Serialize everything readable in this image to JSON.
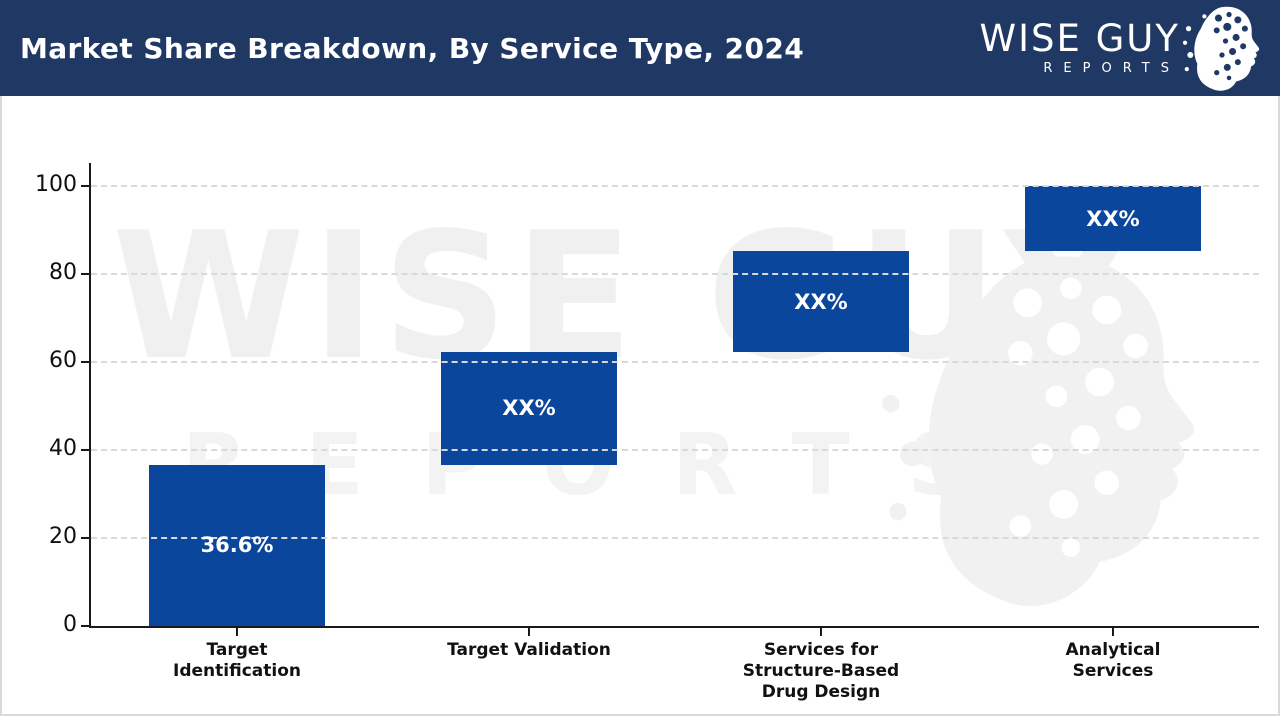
{
  "header": {
    "title": "Market Share Breakdown, By Service Type, 2024",
    "bg_color": "#1F3864",
    "logo": {
      "line1": "WISE GUY",
      "line2": "REPORTS"
    }
  },
  "watermark": {
    "line1": "WISE GUY",
    "line2": "REPORTS"
  },
  "chart_data": {
    "type": "bar",
    "subtype": "waterfall-segments",
    "title": "Market Share Breakdown, By Service Type, 2024",
    "categories": [
      "Target\nIdentification",
      "Target Validation",
      "Services for\nStructure-Based\nDrug Design",
      "Analytical\nServices"
    ],
    "series": [
      {
        "name": "Market share %",
        "segments": [
          {
            "start": 0,
            "end": 36.6,
            "label": "36.6%"
          },
          {
            "start": 36.6,
            "end": 62.3,
            "label": "XX%"
          },
          {
            "start": 62.3,
            "end": 85.2,
            "label": "XX%"
          },
          {
            "start": 85.2,
            "end": 100,
            "label": "XX%"
          }
        ]
      }
    ],
    "bar_color": "#0A469B",
    "label_color": "#ffffff",
    "xlabel": "",
    "ylabel": "",
    "ylim": [
      0,
      105
    ],
    "yticks": [
      0,
      20,
      40,
      60,
      80,
      100
    ],
    "grid": "horizontal-dashed",
    "legend": "none"
  }
}
